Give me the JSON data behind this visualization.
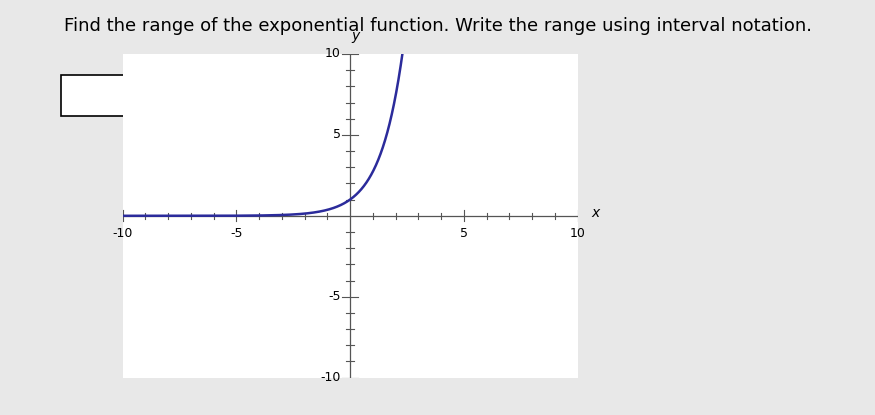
{
  "title": "Find the range of the exponential function. Write the range using interval notation.",
  "title_fontsize": 13,
  "xlim": [
    -10,
    10
  ],
  "ylim": [
    -10,
    10
  ],
  "xlabel": "x",
  "ylabel": "y",
  "x_ticks_labeled": [
    -10,
    -5,
    5,
    10
  ],
  "y_ticks_labeled": [
    -10,
    -5,
    5,
    10
  ],
  "curve_color": "#2B2B9B",
  "curve_linewidth": 1.8,
  "background_color": "#f0f0f0",
  "plot_bg_color": "#f0f0f0",
  "axis_color": "#555555",
  "tick_color": "#555555"
}
